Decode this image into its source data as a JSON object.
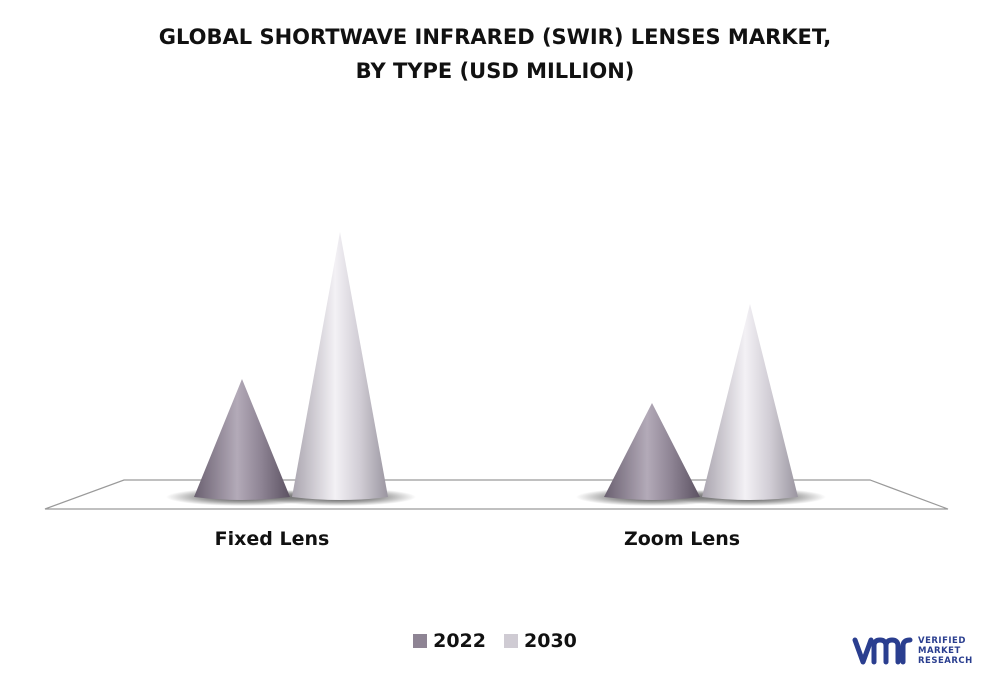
{
  "title_lines": [
    "GLOBAL SHORTWAVE INFRARED (SWIR) LENSES MARKET,",
    "BY TYPE (USD MILLION)"
  ],
  "colors": {
    "series_2022": "#8e8494",
    "series_2030": "#cfcbd3",
    "logo": "#2a3e8f"
  },
  "logo": {
    "mark": "vmr",
    "lines": [
      "VERIFIED",
      "MARKET",
      "RESEARCH"
    ]
  },
  "chart_data": {
    "type": "bar",
    "style": "3d-cone",
    "categories": [
      "Fixed Lens",
      "Zoom Lens"
    ],
    "series": [
      {
        "name": "2022",
        "values": [
          118,
          94
        ]
      },
      {
        "name": "2030",
        "values": [
          265,
          193
        ]
      }
    ],
    "title": "GLOBAL SHORTWAVE INFRARED (SWIR) LENSES MARKET, BY TYPE (USD MILLION)",
    "xlabel": "",
    "ylabel": "",
    "ylim": [
      0,
      300
    ],
    "grid": false,
    "legend": "bottom-center"
  }
}
